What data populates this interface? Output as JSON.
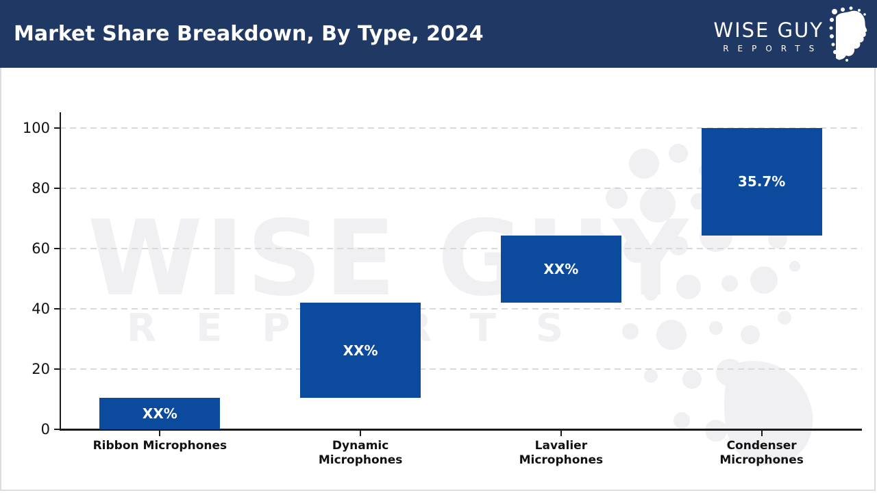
{
  "header": {
    "title": "Market Share Breakdown, By Type, 2024",
    "logo": {
      "name": "WISE GUY",
      "tagline": "REPORTS"
    }
  },
  "watermark": {
    "line1": "WISE GUY",
    "line2": "REPORTS"
  },
  "colors": {
    "header_bg": "#1f3864",
    "bar_fill": "#0c4a9e",
    "bar_label": "#ffffff",
    "gridline": "#d9d9d9",
    "axis": "#1a1a1a",
    "watermark": "#f0f0f3"
  },
  "chart_data": {
    "type": "bar",
    "subtype": "waterfall",
    "title": "Market Share Breakdown, By Type, 2024",
    "categories": [
      "Ribbon Microphones",
      "Dynamic Microphones",
      "Lavalier Microphones",
      "Condenser Microphones"
    ],
    "category_lines": [
      [
        "Ribbon Microphones"
      ],
      [
        "Dynamic",
        "Microphones"
      ],
      [
        "Lavalier",
        "Microphones"
      ],
      [
        "Condenser",
        "Microphones"
      ]
    ],
    "bars": [
      {
        "category": "Ribbon Microphones",
        "start": 0,
        "end": 10.5,
        "value": 10.5,
        "label": "XX%"
      },
      {
        "category": "Dynamic Microphones",
        "start": 10.5,
        "end": 41.9,
        "value": 31.4,
        "label": "XX%"
      },
      {
        "category": "Lavalier Microphones",
        "start": 41.9,
        "end": 64.3,
        "value": 22.4,
        "label": "XX%"
      },
      {
        "category": "Condenser Microphones",
        "start": 64.3,
        "end": 100,
        "value": 35.7,
        "label": "35.7%"
      }
    ],
    "yticks": [
      0,
      20,
      40,
      60,
      80,
      100
    ],
    "ylim": [
      0,
      105
    ],
    "xlabel": "",
    "ylabel": "",
    "grid": "horizontal-dashed",
    "legend": "none"
  }
}
